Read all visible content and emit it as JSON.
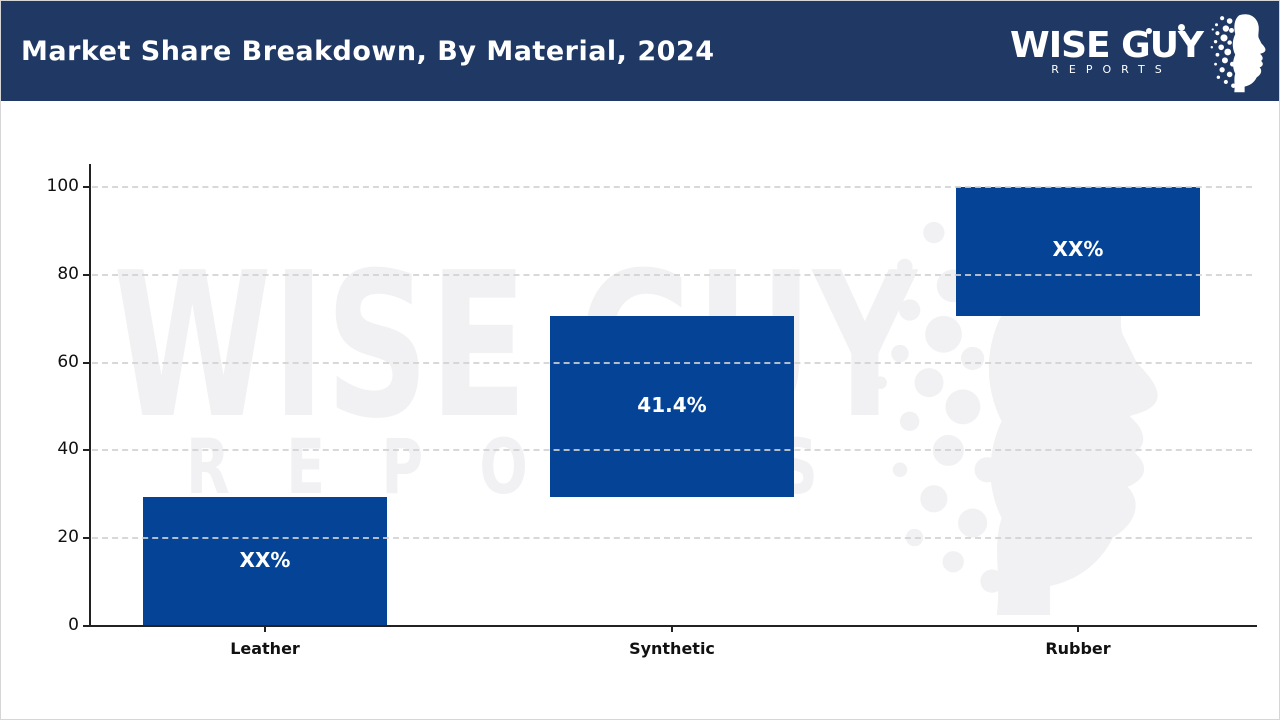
{
  "header": {
    "title": "Market Share Breakdown, By Material, 2024",
    "logo": {
      "line1": "WISE GUY",
      "line2": "REPORTS"
    }
  },
  "watermark": {
    "line1": "WISE GUY",
    "line2": "REPORTS"
  },
  "colors": {
    "header_bg": "#1f3864",
    "bar": "#054396",
    "grid": "#d2d2d2",
    "axis": "#222222",
    "tick_label": "#111111",
    "bar_label": "#ffffff",
    "watermark": "#f1f1f4"
  },
  "chart_data": {
    "type": "bar",
    "subtype": "floating-segment (waterfall style, segments stack 0 to 100)",
    "title": "Market Share Breakdown, By Material, 2024",
    "categories": [
      "Leather",
      "Synthetic",
      "Rubber"
    ],
    "segments": [
      {
        "category": "Leather",
        "start": 0,
        "end": 29.3,
        "value_estimated": 29.3,
        "label": "XX%"
      },
      {
        "category": "Synthetic",
        "start": 29.3,
        "end": 70.7,
        "value_estimated": 41.4,
        "label": "41.4%"
      },
      {
        "category": "Rubber",
        "start": 70.7,
        "end": 100,
        "value_estimated": 29.3,
        "label": "XX%"
      }
    ],
    "xlabel": "",
    "ylabel": "",
    "ylim": [
      0,
      100
    ],
    "yticks": [
      0,
      20,
      40,
      60,
      80,
      100
    ],
    "grid": "horizontal dashed, drawn over bars",
    "legend": "none",
    "bar_color": "#054396",
    "label_color": "#ffffff"
  }
}
